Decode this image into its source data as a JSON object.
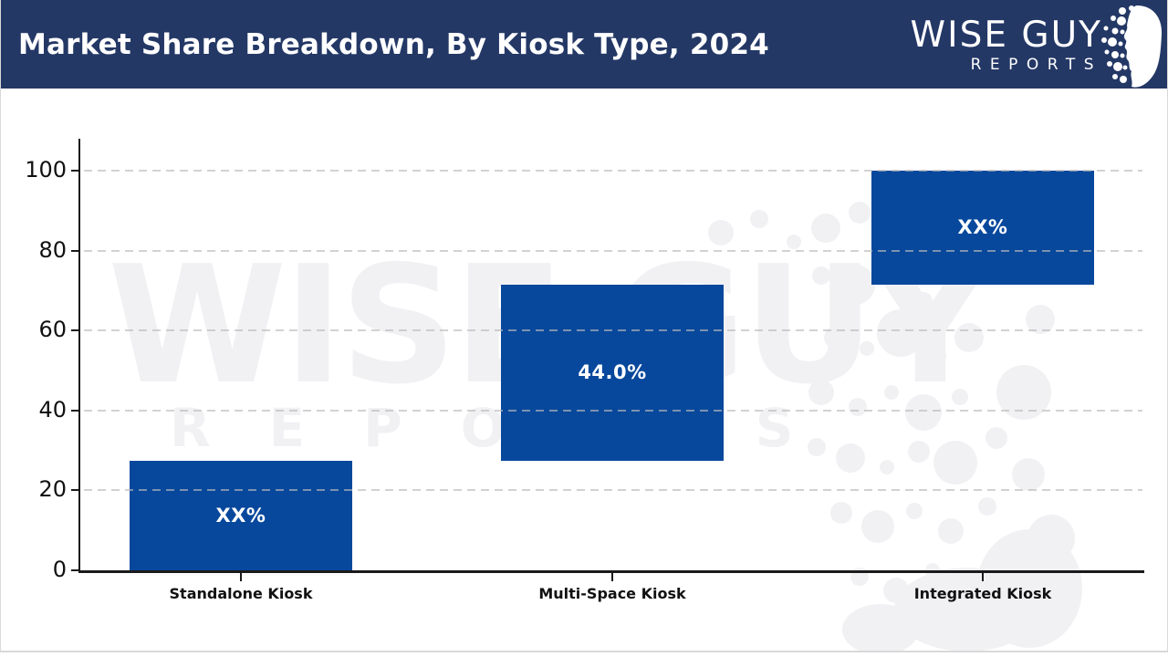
{
  "header": {
    "title": "Market Share Breakdown, By Kiosk Type, 2024",
    "logo": {
      "line1": "WISE GUY",
      "line2": "REPORTS"
    }
  },
  "watermark": {
    "line1": "WISE GUY",
    "line2": "REPORTS"
  },
  "colors": {
    "header_bg": "#243866",
    "bar": "#07489c",
    "bar_label": "#ffffff",
    "gridline": "#d2d2d2",
    "axis": "#1a1a1a",
    "watermark": "#f1f1f4"
  },
  "chart_data": {
    "type": "bar",
    "subtype": "waterfall",
    "title": "Market Share Breakdown, By Kiosk Type, 2024",
    "xlabel": "",
    "ylabel": "",
    "ylim": [
      0,
      100
    ],
    "yticks": [
      0,
      20,
      40,
      60,
      80,
      100
    ],
    "grid": "horizontal-dashed, drawn above bars",
    "legend": "none",
    "categories": [
      "Standalone Kiosk",
      "Multi-Space Kiosk",
      "Integrated Kiosk"
    ],
    "segments": [
      {
        "category": "Standalone Kiosk",
        "start": 0,
        "end": 27.5,
        "label": "XX%"
      },
      {
        "category": "Multi-Space Kiosk",
        "start": 27.5,
        "end": 71.5,
        "label": "44.0%"
      },
      {
        "category": "Integrated Kiosk",
        "start": 71.5,
        "end": 100,
        "label": "XX%"
      }
    ]
  }
}
